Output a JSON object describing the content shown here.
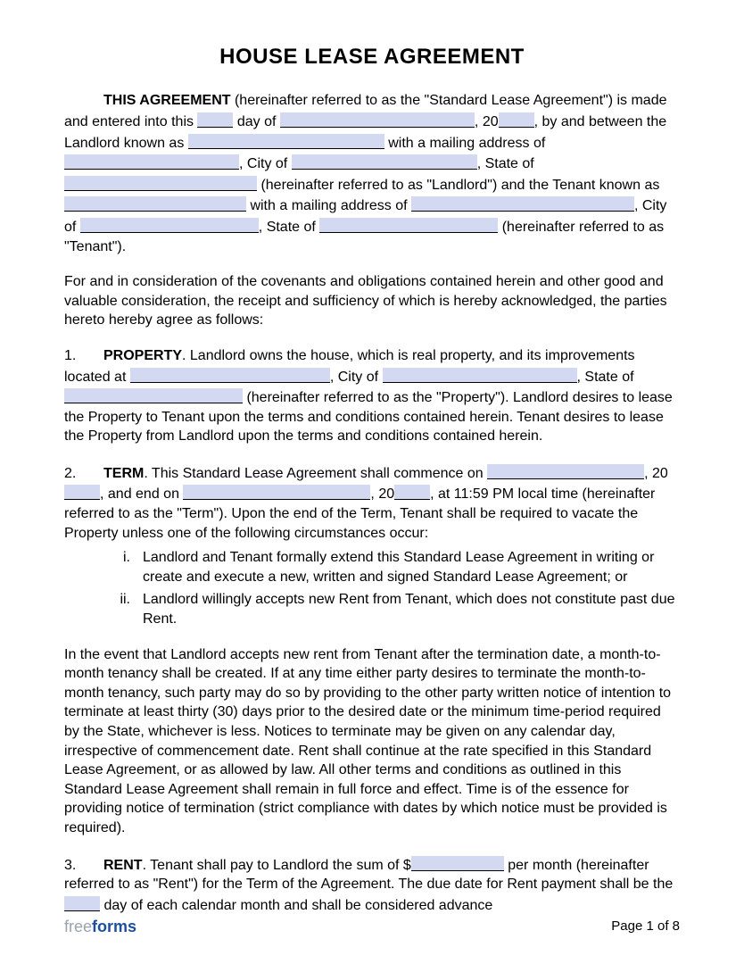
{
  "title": "HOUSE LEASE AGREEMENT",
  "intro": {
    "lead": "THIS AGREEMENT",
    "t1": " (hereinafter referred to as the \"Standard Lease Agreement\") is made and entered into this ",
    "t2": " day of ",
    "t3": ", 20",
    "t4": ", by and between the Landlord known as ",
    "t5": " with a mailing address of ",
    "t6": ", City of ",
    "t7": ", State of ",
    "t8": " (hereinafter referred to as \"Landlord\") and the Tenant known as ",
    "t9": " with a mailing address of ",
    "t10": ", City of ",
    "t11": ", State of ",
    "t12": " (hereinafter referred to as \"Tenant\")."
  },
  "consideration": "For and in consideration of the covenants and obligations contained herein and other good and valuable consideration, the receipt and sufficiency of which is hereby acknowledged, the parties hereto hereby agree as follows:",
  "s1": {
    "num": "1.",
    "head": "PROPERTY",
    "t1": ". Landlord owns the house, which is real property, and its improvements located at ",
    "t2": ", City of ",
    "t3": ", State of ",
    "t4": " (hereinafter referred to as the \"Property\"). Landlord desires to lease the Property to Tenant upon the terms and conditions contained herein. Tenant desires to lease the Property from Landlord upon the terms and conditions contained herein."
  },
  "s2": {
    "num": "2.",
    "head": "TERM",
    "t1": ". This Standard Lease Agreement shall commence on ",
    "t2": ", 20",
    "t3": ", and end on ",
    "t4": ", 20",
    "t5": ", at 11:59 PM local time (hereinafter referred to as the \"Term\"). Upon the end of the Term, Tenant shall be required to vacate the Property unless one of the following circumstances occur:",
    "i1n": "i.",
    "i1": "Landlord and Tenant formally extend this Standard Lease Agreement in writing or create and execute a new, written and signed Standard Lease Agreement; or",
    "i2n": "ii.",
    "i2": "Landlord willingly accepts new Rent from Tenant, which does not constitute past due Rent.",
    "after": "In the event that Landlord accepts new rent from Tenant after the termination date, a month-to-month tenancy shall be created. If at any time either party desires to terminate the month-to-month tenancy, such party may do so by providing to the other party written notice of intention to terminate at least thirty (30) days prior to the desired date or the minimum time-period required by the State, whichever is less. Notices to terminate may be given on any calendar day, irrespective of commencement date. Rent shall continue at the rate specified in this Standard Lease Agreement, or as allowed by law. All other terms and conditions as outlined in this Standard Lease Agreement shall remain in full force and effect. Time is of the essence for providing notice of termination (strict compliance with dates by which notice must be provided is required)."
  },
  "s3": {
    "num": "3.",
    "head": "RENT",
    "t1": ". Tenant shall pay to Landlord the sum of $",
    "t2": " per month (hereinafter referred to as \"Rent\") for the Term of the Agreement. The due date for Rent payment shall be the ",
    "t3": " day of each calendar month and shall be considered advance"
  },
  "footer": {
    "logo1": "free",
    "logo2": "forms",
    "page": "Page 1 of 8"
  },
  "blanks": {
    "w_day": 40,
    "w_month": 218,
    "w_yy": 40,
    "w_landlord": 220,
    "w_addr1": 196,
    "w_city1": 208,
    "w_state1": 216,
    "w_tenant": 204,
    "w_addr2": 250,
    "w_city2": 200,
    "w_state2": 200,
    "w_paddr": 224,
    "w_pcity": 218,
    "w_pstate": 200,
    "w_tstart": 176,
    "w_tyy1": 40,
    "w_tend": 210,
    "w_tyy2": 40,
    "w_rent": 104,
    "w_dueday": 40
  }
}
